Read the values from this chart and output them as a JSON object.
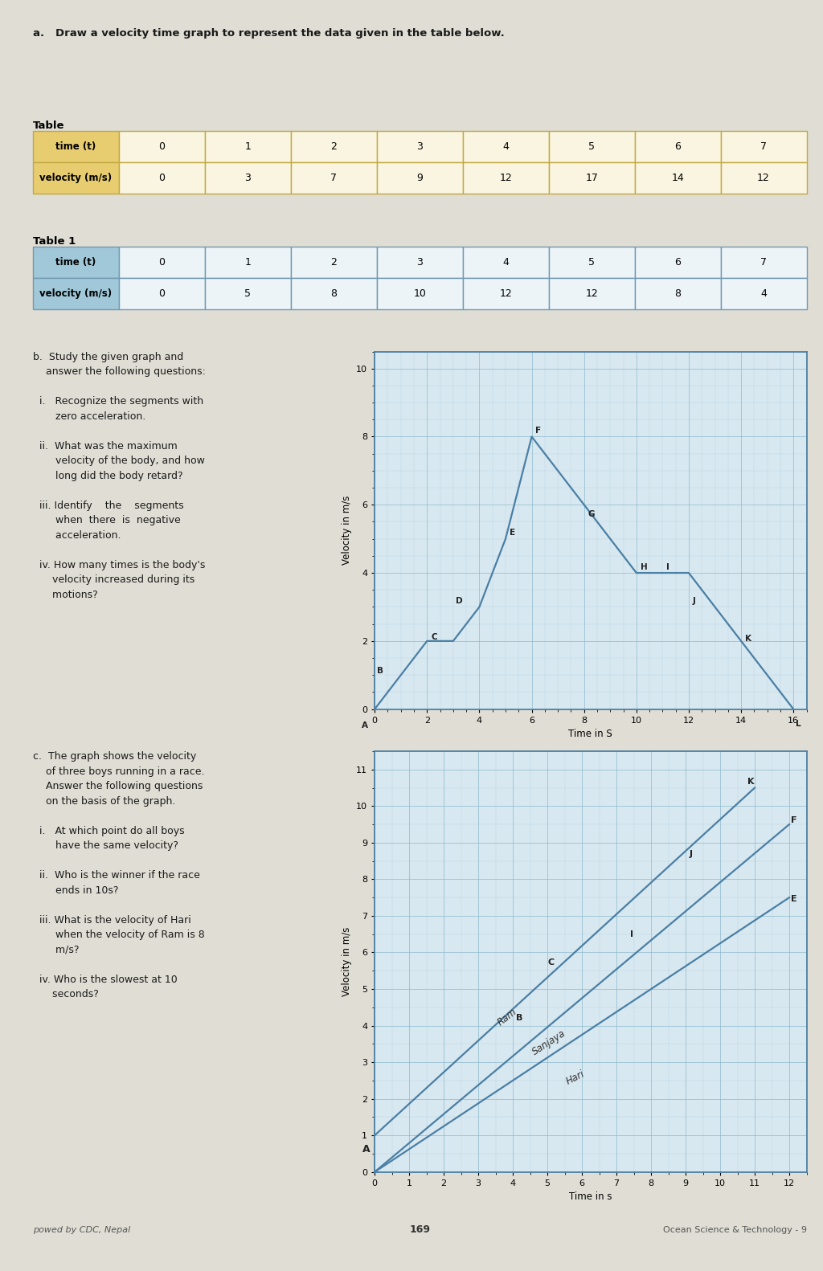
{
  "title_main": "Draw a velocity time graph to represent the data given in the table below.",
  "table_label": "Table",
  "table1_label": "Table 1",
  "table_time": [
    0,
    1,
    2,
    3,
    4,
    5,
    6,
    7
  ],
  "table_velocity": [
    0,
    3,
    7,
    9,
    12,
    17,
    14,
    12
  ],
  "table1_time": [
    0,
    1,
    2,
    3,
    4,
    5,
    6,
    7
  ],
  "table1_velocity": [
    0,
    5,
    8,
    10,
    12,
    12,
    8,
    4
  ],
  "table_header_color": "#e8cc70",
  "table1_header_color": "#a0c8d8",
  "graph_b_points_time": [
    0,
    1,
    2,
    3,
    4,
    5,
    6,
    7,
    8,
    9,
    10,
    11,
    12,
    13,
    14,
    15,
    16
  ],
  "graph_b_points_vel": [
    0,
    1,
    2,
    2,
    3,
    5,
    8,
    7,
    6,
    5,
    4,
    4,
    4,
    3,
    2,
    1,
    0
  ],
  "graph_b_label_pts_time": [
    0,
    1,
    2,
    4,
    5,
    6,
    8,
    10,
    12,
    13,
    14,
    16
  ],
  "graph_b_label_pts_vel": [
    0,
    1,
    2,
    3,
    5,
    8,
    6,
    4,
    4,
    3,
    2,
    0
  ],
  "graph_b_labels": [
    "A",
    "B",
    "C",
    "D",
    "E",
    "F",
    "G",
    "H",
    "I",
    "J",
    "K",
    "L"
  ],
  "graph_b_xlabel": "Time in S",
  "graph_b_ylabel": "Velocity in m/s",
  "graph_b_xlim": [
    0,
    16
  ],
  "graph_b_ylim": [
    0,
    10
  ],
  "graph_b_xticks": [
    0,
    2,
    4,
    6,
    8,
    10,
    12,
    14,
    16
  ],
  "graph_b_yticks": [
    0,
    2,
    4,
    6,
    8,
    10
  ],
  "graph_b_color": "#4a7fa5",
  "graph_c_xlabel": "Time in s",
  "graph_c_ylabel": "Velocity in m/s",
  "graph_c_xlim": [
    0,
    12
  ],
  "graph_c_ylim": [
    0,
    11
  ],
  "graph_c_xticks": [
    0,
    1,
    2,
    3,
    4,
    5,
    6,
    7,
    8,
    9,
    10,
    11,
    12
  ],
  "graph_c_yticks": [
    0,
    1,
    2,
    3,
    4,
    5,
    6,
    7,
    8,
    9,
    10,
    11
  ],
  "ram_time": [
    0,
    11
  ],
  "ram_vel": [
    1,
    10.5
  ],
  "sanjaya_time": [
    0,
    12
  ],
  "sanjaya_vel": [
    0,
    9.5
  ],
  "hari_time": [
    0,
    12
  ],
  "hari_vel": [
    0,
    7.5
  ],
  "line_color": "#4a7fa5",
  "background_color": "#e0ddd4",
  "grid_color": "#8ab8cc",
  "graph_bg": "#d8e8f0",
  "footer_left": "powed by CDC, Nepal",
  "footer_page": "169",
  "footer_right": "Ocean Science & Technology - 9"
}
